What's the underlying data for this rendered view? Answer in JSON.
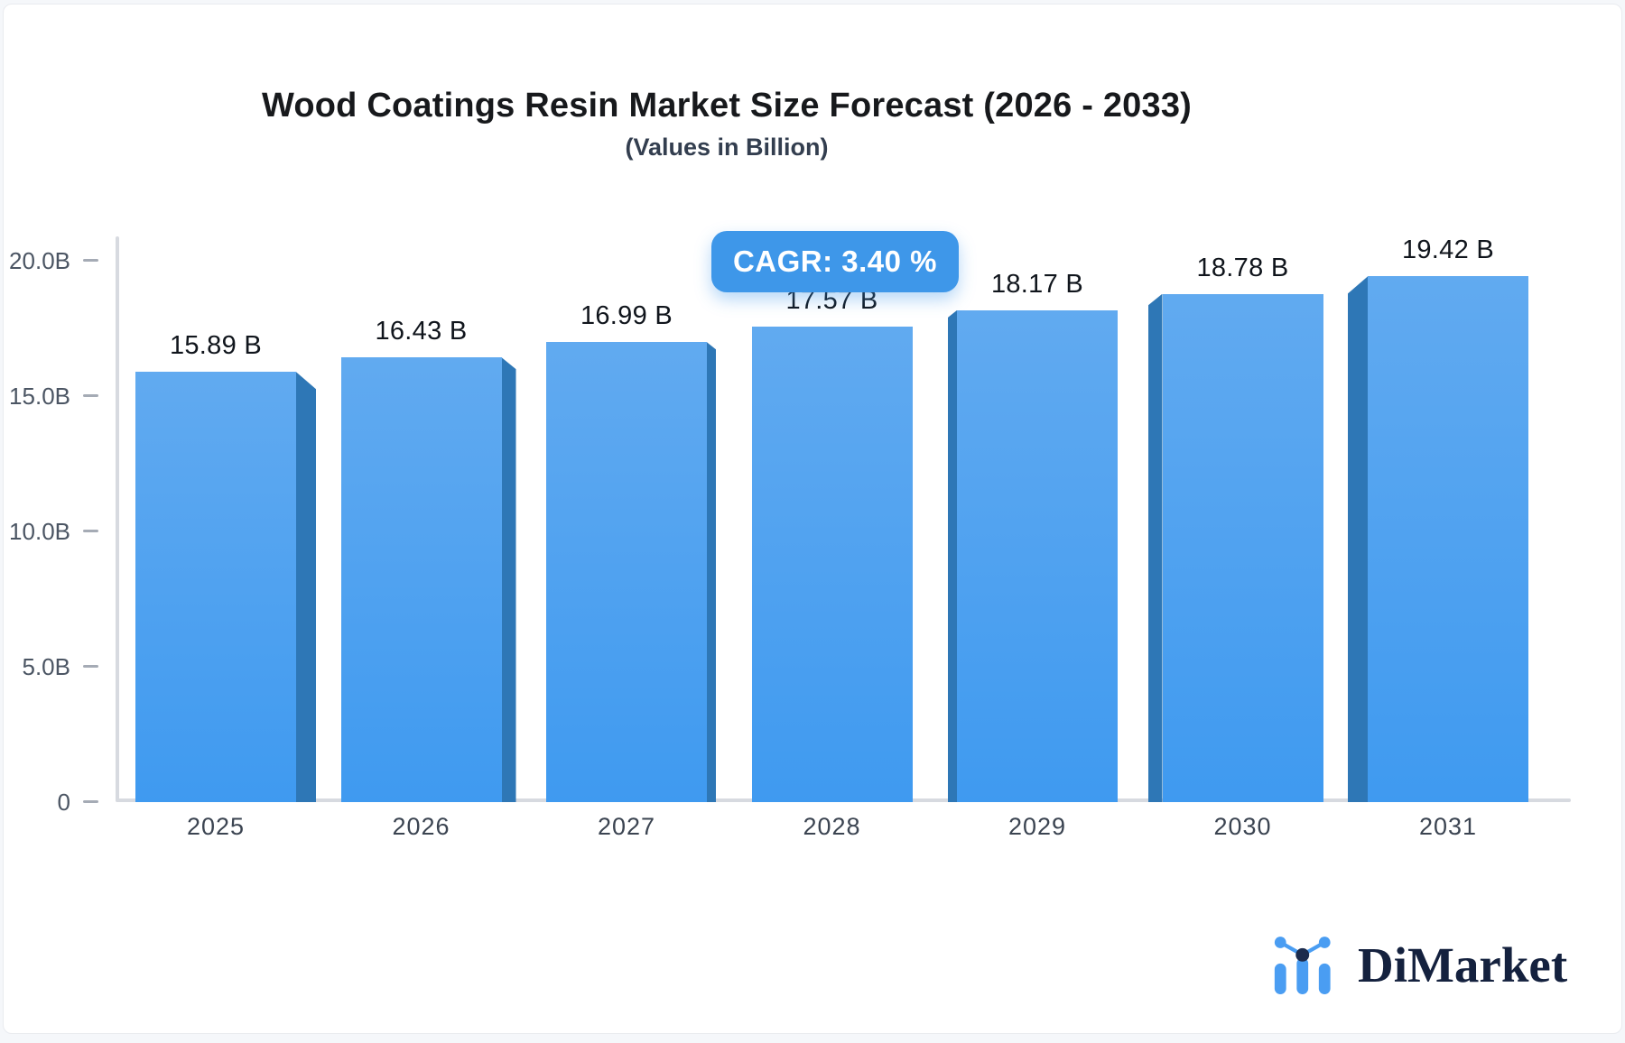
{
  "header": {
    "title": "Wood Coatings Resin Market Size Forecast (2026 - 2033)",
    "subtitle": "(Values in Billion)"
  },
  "badge": {
    "label": "CAGR: 3.40 %"
  },
  "chart_data": {
    "type": "bar",
    "title": "Wood Coatings Resin Market Size Forecast (2026 - 2033)",
    "subtitle": "(Values in Billion)",
    "categories": [
      "2025",
      "2026",
      "2027",
      "2028",
      "2029",
      "2030",
      "2031"
    ],
    "values": [
      15.89,
      16.43,
      16.99,
      17.57,
      18.17,
      18.78,
      19.42
    ],
    "value_labels": [
      "15.89 B",
      "16.43 B",
      "16.99 B",
      "17.57 B",
      "18.17 B",
      "18.78 B",
      "19.42 B"
    ],
    "cagr": "3.40 %",
    "xlabel": "",
    "ylabel": "",
    "ylim": [
      0,
      20
    ],
    "y_ticks": [
      {
        "label": "20.0B",
        "value": 20
      },
      {
        "label": "15.0B",
        "value": 15
      },
      {
        "label": "10.0B",
        "value": 10
      },
      {
        "label": "5.0B",
        "value": 5
      },
      {
        "label": "0",
        "value": 0
      }
    ],
    "grid": false,
    "legend": "none",
    "style": "pseudo-3d bars, vanishing point at center bar"
  },
  "branding": {
    "name": "DiMarket"
  },
  "colors": {
    "bar_top": "#61aaf0",
    "bar_bottom": "#3f9af0",
    "bar_side": "#2e77b6",
    "badge_bg": "#3e97e9",
    "axis_line": "#d7dae0",
    "tick_dash": "#a5abb5",
    "y_label": "#4b5563",
    "x_label": "#3b4451",
    "value_label": "#10151c",
    "title": "#17191c",
    "subtitle": "#333e4f",
    "logo_text": "#14213e",
    "logo_icon": "#4a9df2",
    "logo_dot": "#1b2b4d"
  }
}
